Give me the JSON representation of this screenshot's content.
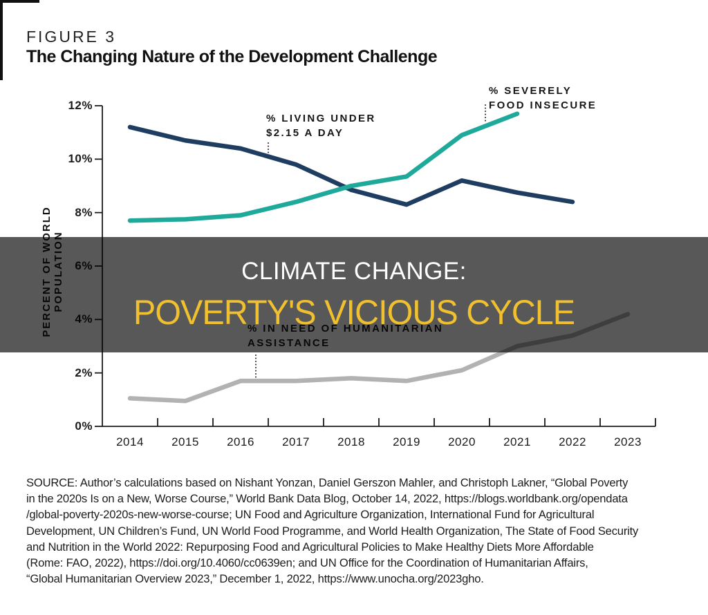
{
  "header": {
    "figure_label": "FIGURE 3",
    "title": "The Changing Nature of the Development Challenge"
  },
  "chart_data": {
    "type": "line",
    "x": [
      2014,
      2015,
      2016,
      2017,
      2018,
      2019,
      2020,
      2021,
      2022,
      2023
    ],
    "ylabel": "PERCENT OF WORLD POPULATION",
    "ylim": [
      0,
      12
    ],
    "ytick_labels": [
      "0%",
      "2%",
      "4%",
      "6%",
      "8%",
      "10%",
      "12%"
    ],
    "grid": false,
    "legend_position": "inline-annotations",
    "series": [
      {
        "name": "% LIVING UNDER $2.15 A DAY",
        "color": "#1e3d61",
        "years": [
          2014,
          2015,
          2016,
          2017,
          2018,
          2019,
          2020,
          2021,
          2022
        ],
        "values": [
          11.2,
          10.7,
          10.4,
          9.8,
          8.85,
          8.3,
          9.2,
          8.75,
          8.4
        ]
      },
      {
        "name": "% SEVERELY FOOD INSECURE",
        "color": "#1fa99a",
        "years": [
          2014,
          2015,
          2016,
          2017,
          2018,
          2019,
          2020,
          2021
        ],
        "values": [
          7.7,
          7.75,
          7.9,
          8.4,
          9.0,
          9.35,
          10.9,
          11.7
        ]
      },
      {
        "name": "% IN NEED OF HUMANITARIAN ASSISTANCE",
        "color": "#b2b2b2",
        "years": [
          2014,
          2015,
          2016,
          2017,
          2018,
          2019,
          2020,
          2021,
          2022,
          2023
        ],
        "values": [
          1.05,
          0.95,
          1.7,
          1.7,
          1.8,
          1.7,
          2.1,
          3.0,
          3.4,
          4.2
        ]
      }
    ]
  },
  "annotations": {
    "poverty": [
      "% LIVING UNDER",
      "$2.15 A DAY"
    ],
    "food": [
      "% SEVERELY",
      "FOOD INSECURE"
    ],
    "humanitarian": [
      "% IN NEED OF HUMANITARIAN",
      "ASSISTANCE"
    ]
  },
  "overlay": {
    "line1": "CLIMATE CHANGE:",
    "line2": "POVERTY'S VICIOUS CYCLE",
    "text_color": "#ffffff",
    "accent_color": "#f0c02f",
    "band_color": "#585858"
  },
  "source": {
    "lines": [
      "SOURCE: Author’s calculations based on Nishant Yonzan, Daniel Gerszon Mahler, and Christoph Lakner, “Global Poverty",
      "in the 2020s Is on a New, Worse Course,” World Bank Data Blog, October 14, 2022, https://blogs.worldbank.org/opendata",
      "/global-poverty-2020s-new-worse-course; UN Food and Agriculture Organization, International Fund for Agricultural",
      "Development, UN Children’s Fund, UN World Food Programme, and World Health Organization, The State of Food Security",
      "and Nutrition in the World 2022: Repurposing Food and Agricultural Policies to Make Healthy Diets More Affordable",
      "(Rome: FAO, 2022), https://doi.org/10.4060/cc0639en; and UN Office for the Coordination of Humanitarian Affairs,",
      "“Global Humanitarian Overview 2023,” December 1, 2022, https://www.unocha.org/2023gho."
    ]
  }
}
